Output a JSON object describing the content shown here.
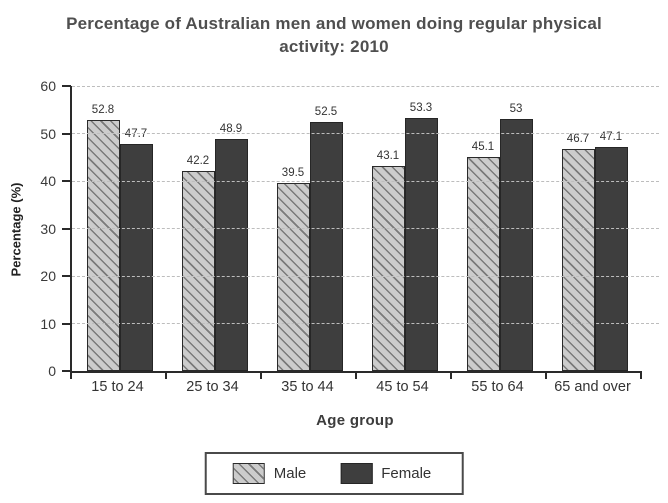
{
  "title": "Percentage of Australian men and women doing regular physical activity: 2010",
  "chart_data": {
    "type": "bar",
    "categories": [
      "15 to 24",
      "25 to 34",
      "35 to 44",
      "45 to 54",
      "55 to 64",
      "65 and over"
    ],
    "series": [
      {
        "name": "Male",
        "values": [
          52.8,
          42.2,
          39.5,
          43.1,
          45.1,
          46.7
        ]
      },
      {
        "name": "Female",
        "values": [
          47.7,
          48.9,
          52.5,
          53.3,
          53,
          47.1
        ]
      }
    ],
    "title": "Percentage of Australian men and women doing regular physical activity: 2010",
    "xlabel": "Age group",
    "ylabel": "Percentage (%)",
    "ylim": [
      0,
      60
    ],
    "yticks": [
      0,
      10,
      20,
      30,
      40,
      50,
      60
    ],
    "grid": true,
    "grid_style": "dashed",
    "bar_labels_shown": true,
    "legend_position": "bottom"
  },
  "legend": {
    "items": [
      {
        "label": "Male",
        "swatch": "hatched"
      },
      {
        "label": "Female",
        "swatch": "solid-dark"
      }
    ]
  },
  "colors": {
    "male_fill": "#cccccc",
    "male_stripe": "#7a7a7a",
    "female_fill": "#3e3e3e",
    "axis": "#2a2a2a",
    "gridline": "#bdbdbd",
    "title_text": "#4f4f4f",
    "background": "#ffffff"
  }
}
